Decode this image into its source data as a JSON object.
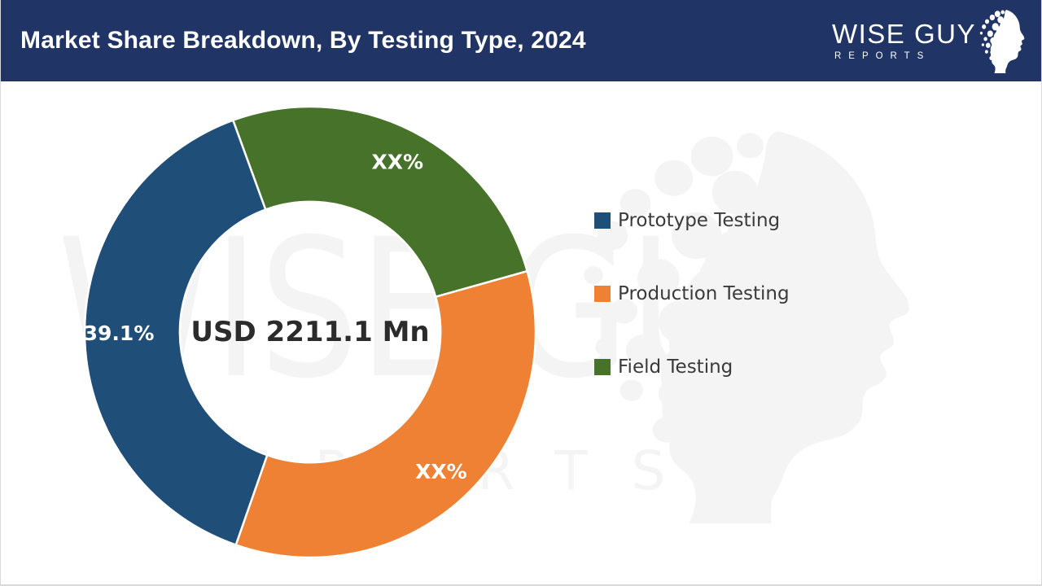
{
  "header": {
    "title": "Market Share Breakdown, By Testing Type, 2024",
    "logo": {
      "name": "WISE GUY",
      "sub": "REPORTS"
    }
  },
  "watermark": {
    "line1": "WISE GUY",
    "line2": "REPORTS"
  },
  "colors": {
    "header_bg": "#203565",
    "blue": "#1f4e79",
    "orange": "#ee8133",
    "green": "#47722a",
    "watermark": "#f4f4f4",
    "slice_label_text": "#ffffff",
    "center_text": "#2b2b2b",
    "legend_text": "#3a3a3a",
    "border": "#d9d9d9"
  },
  "chart_data": {
    "type": "donut",
    "title": "Market Share Breakdown, By Testing Type, 2024",
    "center_label": "USD 2211.1 Mn",
    "start_angle_deg": -20,
    "inner_radius_ratio": 0.578,
    "legend_position": "right",
    "segments": [
      {
        "name": "Field Testing",
        "value_label": "XX%",
        "pct": 26.2,
        "color_key": "green"
      },
      {
        "name": "Production Testing",
        "value_label": "XX%",
        "pct": 34.7,
        "color_key": "orange"
      },
      {
        "name": "Prototype Testing",
        "value_label": "39.1%",
        "pct": 39.1,
        "color_key": "blue"
      }
    ],
    "legend": [
      {
        "label": "Prototype Testing",
        "color_key": "blue"
      },
      {
        "label": "Production Testing",
        "color_key": "orange"
      },
      {
        "label": "Field Testing",
        "color_key": "green"
      }
    ]
  }
}
